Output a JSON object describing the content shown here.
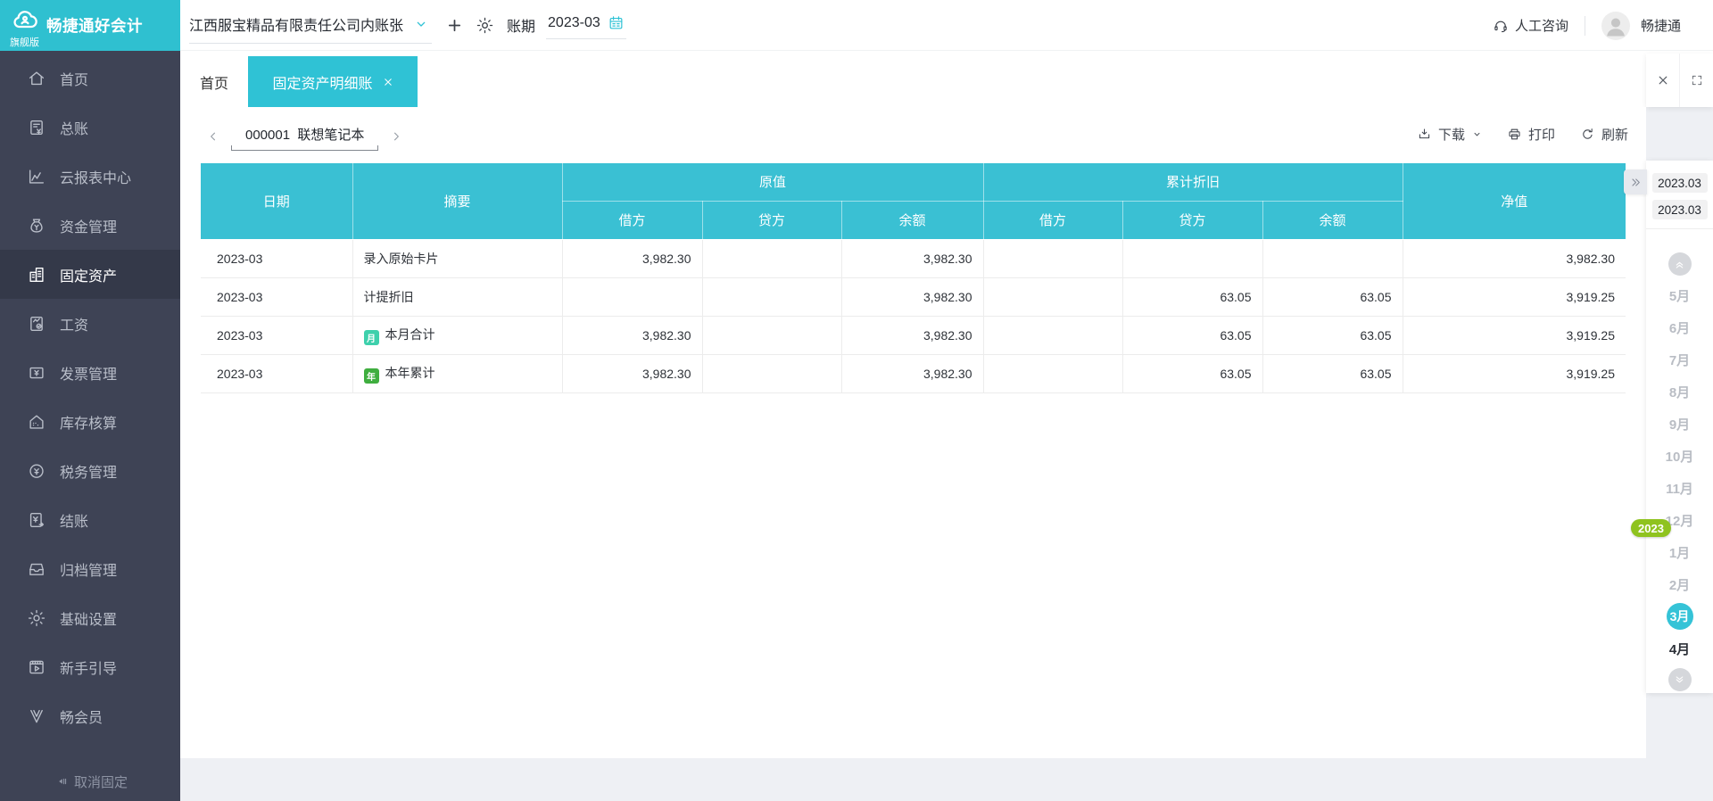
{
  "colors": {
    "accent_teal": "#2fc2d5",
    "logo_bg": "#2fc0d0",
    "table_header_teal": "#3ac0d3",
    "sidebar_bg": "#3e4355",
    "sidebar_active_bg": "#343949",
    "selected_month_teal": "#35c3d7",
    "year_badge_green": "#8fc31f",
    "month_total_icon_color": "#3ed0ac",
    "year_total_icon_color": "#3fae3f"
  },
  "brand": {
    "name": "畅捷通好会计",
    "edition": "旗舰版"
  },
  "sidebar": {
    "items": [
      {
        "label": "首页",
        "icon": "home-icon",
        "active": false
      },
      {
        "label": "总账",
        "icon": "ledger-icon",
        "active": false
      },
      {
        "label": "云报表中心",
        "icon": "cloud-report-icon",
        "active": false
      },
      {
        "label": "资金管理",
        "icon": "funds-icon",
        "active": false
      },
      {
        "label": "固定资产",
        "icon": "fixed-assets-icon",
        "active": true
      },
      {
        "label": "工资",
        "icon": "payroll-icon",
        "active": false
      },
      {
        "label": "发票管理",
        "icon": "invoice-icon",
        "active": false
      },
      {
        "label": "库存核算",
        "icon": "inventory-icon",
        "active": false
      },
      {
        "label": "税务管理",
        "icon": "tax-icon",
        "active": false
      },
      {
        "label": "结账",
        "icon": "closing-icon",
        "active": false
      },
      {
        "label": "归档管理",
        "icon": "archive-icon",
        "active": false
      },
      {
        "label": "基础设置",
        "icon": "settings-icon",
        "active": false
      },
      {
        "label": "新手引导",
        "icon": "guide-icon",
        "active": false
      },
      {
        "label": "畅会员",
        "icon": "member-icon",
        "active": false
      }
    ],
    "unpin": {
      "label": "取消固定"
    }
  },
  "topbar": {
    "company": {
      "value": "江西服宝精品有限责任公司内账张"
    },
    "period": {
      "label": "账期",
      "value": "2023-03"
    },
    "support": {
      "label": "人工咨询"
    },
    "user": {
      "name": "畅捷通"
    }
  },
  "tabbar": {
    "tabs": [
      {
        "label": "首页",
        "active": false
      },
      {
        "label": "固定资产明细账",
        "active": true,
        "closable": true
      }
    ]
  },
  "toolbar": {
    "asset_nav": {
      "value": "000001  联想笔记本"
    },
    "actions": [
      {
        "label": "下载",
        "icon": "download-icon",
        "has_dropdown": true
      },
      {
        "label": "打印",
        "icon": "printer-icon",
        "has_dropdown": false
      },
      {
        "label": "刷新",
        "icon": "refresh-icon",
        "has_dropdown": false
      }
    ]
  },
  "table": {
    "header": {
      "date": "日期",
      "summary": "摘要",
      "original_value": "原值",
      "accumulated_depreciation": "累计折旧",
      "net_value": "净值",
      "debit": "借方",
      "credit": "贷方",
      "balance": "余额"
    },
    "rows": [
      {
        "date": "2023-03",
        "summary": "录入原始卡片",
        "icon": null,
        "values": [
          "3,982.30",
          "",
          "3,982.30",
          "",
          "",
          "",
          "3,982.30"
        ]
      },
      {
        "date": "2023-03",
        "summary": "计提折旧",
        "icon": null,
        "values": [
          "",
          "",
          "3,982.30",
          "",
          "63.05",
          "63.05",
          "3,919.25"
        ]
      },
      {
        "date": "2023-03",
        "summary": "本月合计",
        "icon": {
          "name": "month-total-icon",
          "char": "月",
          "color": "#3ed0ac"
        },
        "values": [
          "3,982.30",
          "",
          "3,982.30",
          "",
          "63.05",
          "63.05",
          "3,919.25"
        ]
      },
      {
        "date": "2023-03",
        "summary": "本年累计",
        "icon": {
          "name": "year-total-icon",
          "char": "年",
          "color": "#3fae3f"
        },
        "values": [
          "3,982.30",
          "",
          "3,982.30",
          "",
          "63.05",
          "63.05",
          "3,919.25"
        ]
      }
    ]
  },
  "right_panel": {
    "period_from": "2023.03",
    "period_to": "2023.03",
    "year_badge": "2023",
    "months": [
      {
        "label": "5月",
        "state": "disabled"
      },
      {
        "label": "6月",
        "state": "disabled"
      },
      {
        "label": "7月",
        "state": "disabled"
      },
      {
        "label": "8月",
        "state": "disabled"
      },
      {
        "label": "9月",
        "state": "disabled"
      },
      {
        "label": "10月",
        "state": "disabled"
      },
      {
        "label": "11月",
        "state": "disabled"
      },
      {
        "label": "12月",
        "state": "disabled"
      },
      {
        "label": "1月",
        "state": "disabled"
      },
      {
        "label": "2月",
        "state": "disabled"
      },
      {
        "label": "3月",
        "state": "selected"
      },
      {
        "label": "4月",
        "state": "normal"
      }
    ]
  }
}
